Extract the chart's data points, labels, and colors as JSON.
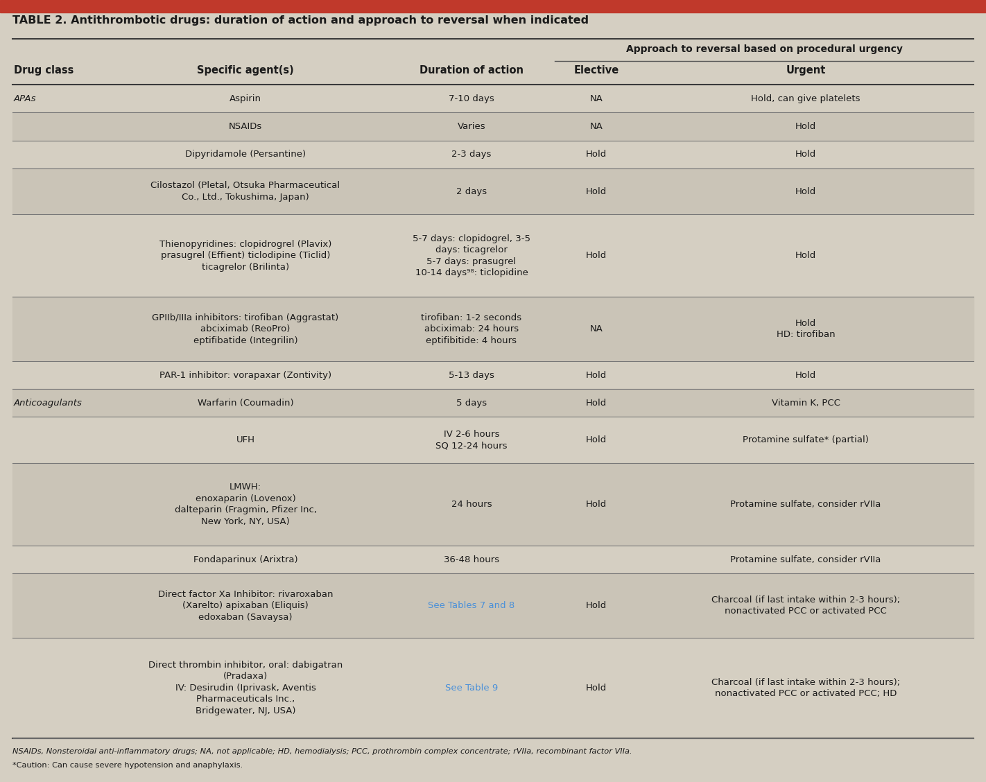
{
  "title": "TABLE 2. Antithrombotic drugs: duration of action and approach to reversal when indicated",
  "title_bar_color": "#c0392b",
  "bg_color": "#d5cfc2",
  "row_colors": [
    "#d5cfc2",
    "#cac4b7"
  ],
  "text_color": "#1a1a1a",
  "link_color": "#4a90d9",
  "subheader_text": "Approach to reversal based on procedural urgency",
  "col_headers": [
    "Drug class",
    "Specific agent(s)",
    "Duration of action",
    "Elective",
    "Urgent"
  ],
  "footnote1": "NSAIDs, Nonsteroidal anti-inflammatory drugs; NA, not applicable; HD, hemodialysis; PCC, prothrombin complex concentrate; rVIIa, recombinant factor VIIa.",
  "footnote2": "*Caution: Can cause severe hypotension and anaphylaxis.",
  "rows": [
    {
      "drug_class": "APAs",
      "agent": "Aspirin",
      "duration": "7-10 days",
      "duration_link": false,
      "elective": "NA",
      "urgent": "Hold, can give platelets",
      "shade": 0
    },
    {
      "drug_class": "",
      "agent": "NSAIDs",
      "duration": "Varies",
      "duration_link": false,
      "elective": "NA",
      "urgent": "Hold",
      "shade": 1
    },
    {
      "drug_class": "",
      "agent": "Dipyridamole (Persantine)",
      "duration": "2-3 days",
      "duration_link": false,
      "elective": "Hold",
      "urgent": "Hold",
      "shade": 0
    },
    {
      "drug_class": "",
      "agent": "Cilostazol (Pletal, Otsuka Pharmaceutical\nCo., Ltd., Tokushima, Japan)",
      "duration": "2 days",
      "duration_link": false,
      "elective": "Hold",
      "urgent": "Hold",
      "shade": 1
    },
    {
      "drug_class": "",
      "agent": "Thienopyridines: clopidrogrel (Plavix)\nprasugrel (Effient) ticlodipine (Ticlid)\nticagrelor (Brilinta)",
      "duration": "5-7 days: clopidogrel, 3-5\ndays: ticagrelor\n5-7 days: prasugrel\n10-14 days⁹⁸: ticlopidine",
      "duration_link": false,
      "elective": "Hold",
      "urgent": "Hold",
      "shade": 0
    },
    {
      "drug_class": "",
      "agent": "GPIIb/IIIa inhibitors: tirofiban (Aggrastat)\nabciximab (ReoPro)\neptifibatide (Integrilin)",
      "duration": "tirofiban: 1-2 seconds\nabciximab: 24 hours\neptifibitide: 4 hours",
      "duration_link": false,
      "elective": "NA",
      "urgent": "Hold\nHD: tirofiban",
      "shade": 1
    },
    {
      "drug_class": "",
      "agent": "PAR-1 inhibitor: vorapaxar (Zontivity)",
      "duration": "5-13 days",
      "duration_link": false,
      "elective": "Hold",
      "urgent": "Hold",
      "shade": 0
    },
    {
      "drug_class": "Anticoagulants",
      "agent": "Warfarin (Coumadin)",
      "duration": "5 days",
      "duration_link": false,
      "elective": "Hold",
      "urgent": "Vitamin K, PCC",
      "shade": 1
    },
    {
      "drug_class": "",
      "agent": "UFH",
      "duration": "IV 2-6 hours\nSQ 12-24 hours",
      "duration_link": false,
      "elective": "Hold",
      "urgent": "Protamine sulfate* (partial)",
      "shade": 0
    },
    {
      "drug_class": "",
      "agent": "LMWH:\nenoxaparin (Lovenox)\ndalteparin (Fragmin, Pfizer Inc,\nNew York, NY, USA)",
      "duration": "24 hours",
      "duration_link": false,
      "elective": "Hold",
      "urgent": "Protamine sulfate, consider rVIIa",
      "shade": 1
    },
    {
      "drug_class": "",
      "agent": "Fondaparinux (Arixtra)",
      "duration": "36-48 hours",
      "duration_link": false,
      "elective": "",
      "urgent": "Protamine sulfate, consider rVIIa",
      "shade": 0
    },
    {
      "drug_class": "",
      "agent": "Direct factor Xa Inhibitor: rivaroxaban\n(Xarelto) apixaban (Eliquis)\nedoxaban (Savaysa)",
      "duration": "See Tables 7 and 8",
      "duration_link": true,
      "elective": "Hold",
      "urgent": "Charcoal (if last intake within 2-3 hours);\nnonactivated PCC or activated PCC",
      "shade": 1
    },
    {
      "drug_class": "",
      "agent": "Direct thrombin inhibitor, oral: dabigatran\n(Pradaxa)\nIV: Desirudin (Iprivask, Aventis\nPharmaceuticals Inc.,\nBridgewater, NJ, USA)",
      "duration": "See Table 9",
      "duration_link": true,
      "elective": "Hold",
      "urgent": "Charcoal (if last intake within 2-3 hours);\nnonactivated PCC or activated PCC; HD",
      "shade": 0
    }
  ]
}
